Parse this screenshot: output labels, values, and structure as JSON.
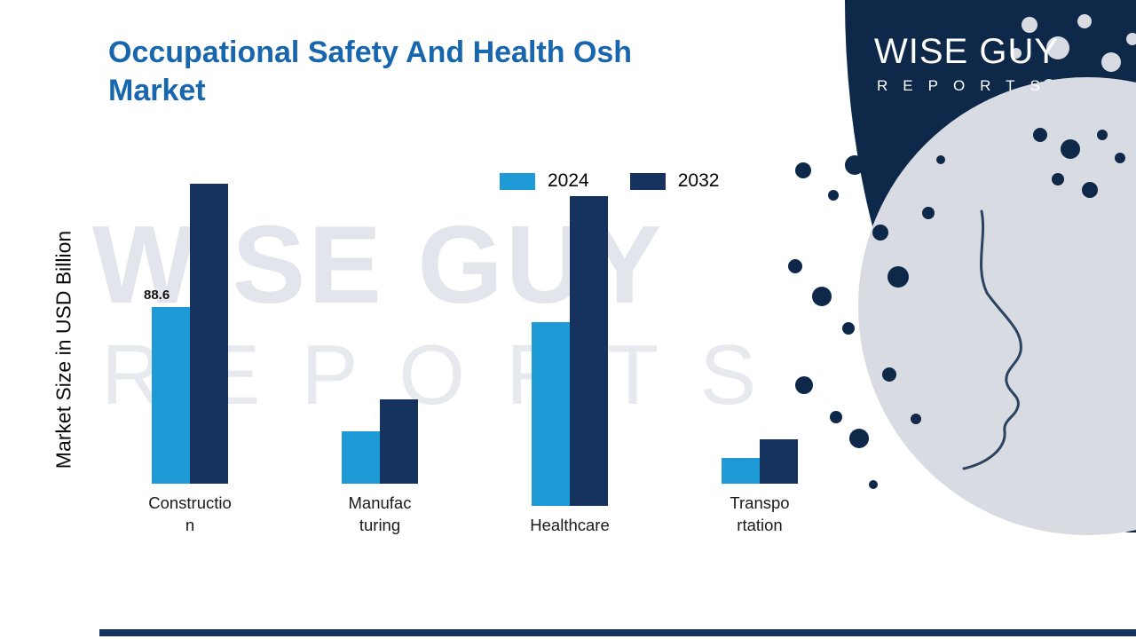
{
  "page": {
    "title": "Occupational Safety And Health Osh Market",
    "y_axis_label": "Market Size in USD Billion"
  },
  "brand": {
    "logo_name": "WISE GUY",
    "logo_sub": "REPORTS",
    "watermark_name": "WISE GUY",
    "watermark_sub": "REPORTS"
  },
  "colors": {
    "title_blue": "#1766AE",
    "bar_2024": "#1E9BD7",
    "bar_2032": "#16325F",
    "deco_navy": "#0D2849",
    "head_gray": "#D8DCE2"
  },
  "chart_data": {
    "type": "bar",
    "title": "Occupational Safety And Health Osh Market",
    "ylabel": "Market Size in USD Billion",
    "xlabel": "",
    "ylim": [
      0,
      160
    ],
    "grid": false,
    "legend_position": "top-center",
    "categories": [
      "Construction",
      "Manufacturing",
      "Healthcare",
      "Transportation"
    ],
    "category_label_lines": [
      [
        "Constructio",
        "n"
      ],
      [
        "Manufac",
        "turing"
      ],
      [
        "Healthcare"
      ],
      [
        "Transpo",
        "rtation"
      ]
    ],
    "series": [
      {
        "name": "2024",
        "color": "#1E9BD7",
        "values": [
          88.6,
          26,
          92,
          13
        ]
      },
      {
        "name": "2032",
        "color": "#16325F",
        "values": [
          150,
          42,
          155,
          22
        ]
      }
    ],
    "value_labels": [
      {
        "series": "2024",
        "category": "Construction",
        "text": "88.6"
      }
    ]
  }
}
